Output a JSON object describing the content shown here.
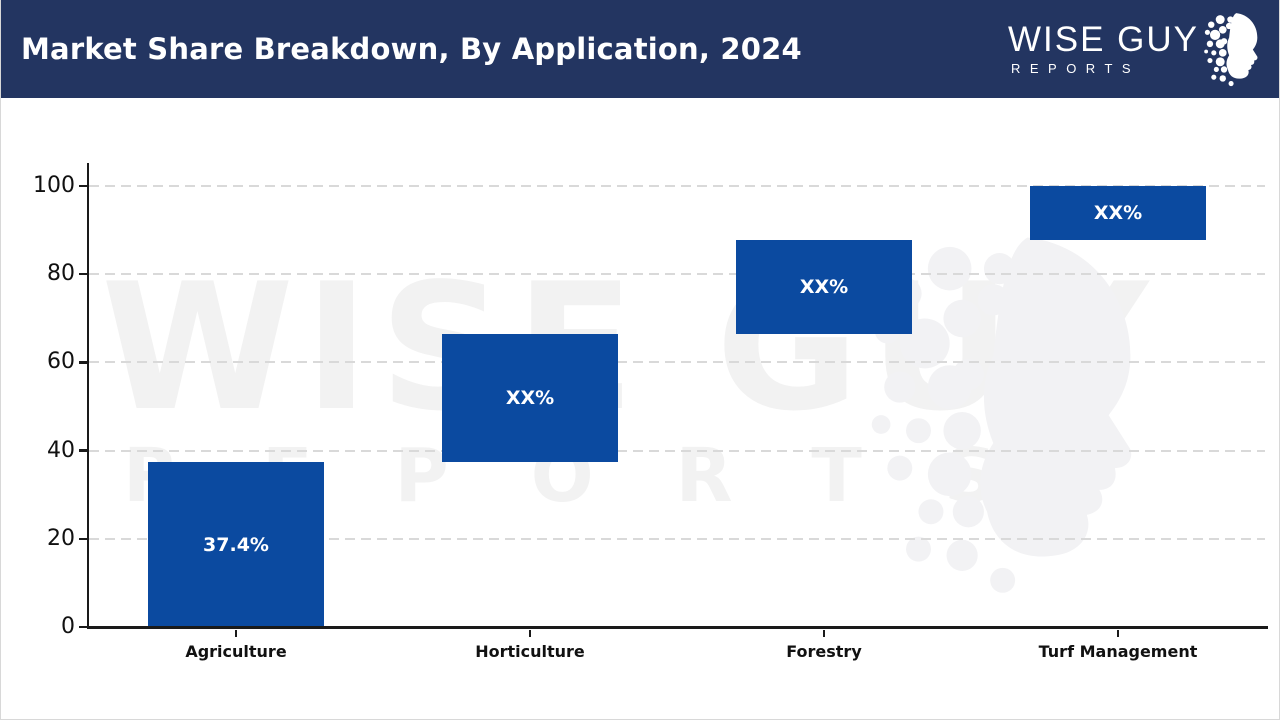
{
  "header": {
    "title": "Market Share Breakdown, By Application, 2024",
    "logo": {
      "line1": "WISE GUY",
      "line2": "REPORTS",
      "face_icon": "dotted-head-profile"
    }
  },
  "watermark": {
    "line1": "WISE GUY",
    "line2": "REPORTS",
    "face_icon": "dotted-head-profile"
  },
  "colors": {
    "header_bg": "#233561",
    "bar": "#0b4aa0",
    "gridline": "#d9d9d9",
    "axis": "#1a1a1a",
    "bar_label": "#ffffff",
    "watermark": "#f2f2f2"
  },
  "chart_data": {
    "type": "bar",
    "subtype": "waterfall",
    "title": "Market Share Breakdown, By Application, 2024",
    "categories": [
      "Agriculture",
      "Horticulture",
      "Forestry",
      "Turf Management"
    ],
    "series": [
      {
        "name": "Market Share",
        "segments": [
          {
            "category": "Agriculture",
            "start": 0,
            "end": 37.4,
            "label": "37.4%"
          },
          {
            "category": "Horticulture",
            "start": 37.4,
            "end": 66.5,
            "label": "XX%"
          },
          {
            "category": "Forestry",
            "start": 66.5,
            "end": 87.7,
            "label": "XX%"
          },
          {
            "category": "Turf Management",
            "start": 87.7,
            "end": 100,
            "label": "XX%"
          }
        ]
      }
    ],
    "xlabel": "",
    "ylabel": "",
    "ylim": [
      0,
      100
    ],
    "yticks": [
      0,
      20,
      40,
      60,
      80,
      100
    ],
    "grid": "dashed-horizontal",
    "legend": "none",
    "bar_color": "#0b4aa0"
  }
}
